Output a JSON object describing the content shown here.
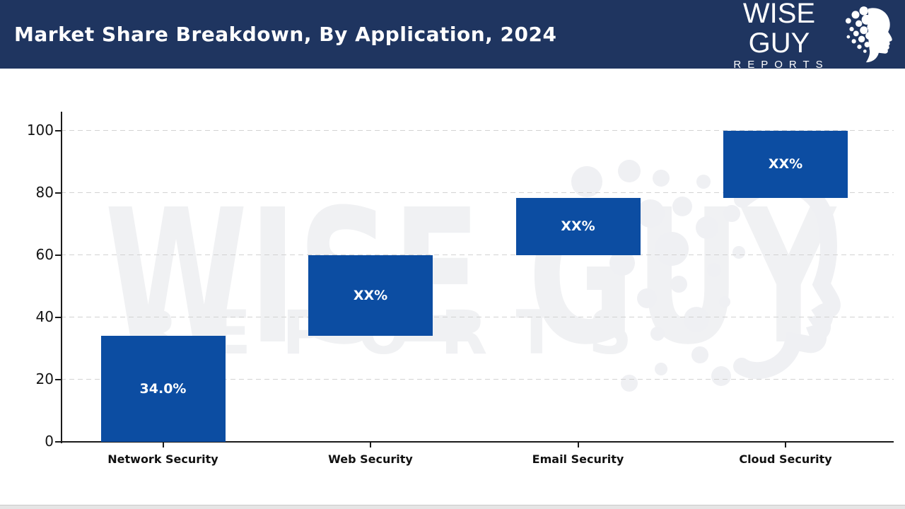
{
  "header": {
    "title": "Market Share Breakdown, By Application, 2024",
    "brand": {
      "line1": "WISE GUY",
      "line2": "REPORTS"
    }
  },
  "watermark": {
    "line1": "WISE GUY",
    "line2": "REPORTS"
  },
  "icons": {
    "brand_head": "dotted-head-profile-icon",
    "watermark_head": "dotted-head-profile-watermark"
  },
  "colors": {
    "header_bg": "#1f3560",
    "bar_fill": "#0c4da2",
    "grid_line": "#d2d2d2",
    "watermark": "#f0f1f3",
    "axis": "#1a1a1a"
  },
  "chart_data": {
    "type": "bar",
    "subtype": "waterfall",
    "title": "Market Share Breakdown, By Application, 2024",
    "categories": [
      "Network Security",
      "Web Security",
      "Email Security",
      "Cloud Security"
    ],
    "segments": [
      {
        "category": "Network Security",
        "start": 0,
        "end": 34,
        "value": 34,
        "value_label": "34.0%"
      },
      {
        "category": "Web Security",
        "start": 34,
        "end": 60,
        "value": 26,
        "value_label": "XX%"
      },
      {
        "category": "Email Security",
        "start": 60,
        "end": 78.5,
        "value": 18.5,
        "value_label": "XX%"
      },
      {
        "category": "Cloud Security",
        "start": 78.5,
        "end": 100,
        "value": 21.5,
        "value_label": "XX%"
      }
    ],
    "y_ticks": [
      0,
      20,
      40,
      60,
      80,
      100
    ],
    "ylim": [
      0,
      106
    ],
    "xlabel": "",
    "ylabel": "",
    "grid": {
      "horizontal": true,
      "style": "dashed",
      "color": "#d2d2d2"
    },
    "legend": null,
    "bar_color": "#0c4da2"
  }
}
